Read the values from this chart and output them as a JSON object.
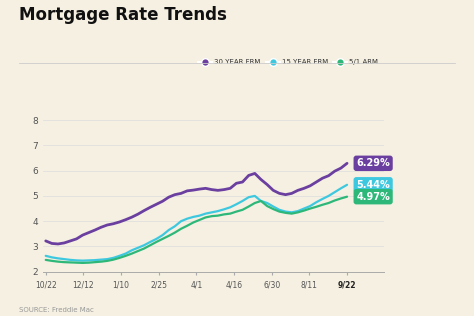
{
  "title": "Mortgage Rate Trends",
  "background_color": "#f5f0e1",
  "plot_bg_color": "#f5f0e1",
  "source_text": "SOURCE: Freddie Mac",
  "x_labels": [
    "10/22",
    "12/12",
    "1/10",
    "2/25",
    "4/1",
    "4/16",
    "6/30",
    "8/11",
    "9/22"
  ],
  "y_ticks": [
    2,
    3,
    4,
    5,
    6,
    7,
    8
  ],
  "ylim": [
    2.0,
    8.5
  ],
  "legend": [
    {
      "label": "30 YEAR FRM",
      "color": "#6b3fa0"
    },
    {
      "label": "15 YEAR FRM",
      "color": "#3ec8e0"
    },
    {
      "label": "5/1 ARM",
      "color": "#2db87a"
    }
  ],
  "end_labels": [
    {
      "value": "6.29%",
      "color": "#6b3fa0"
    },
    {
      "value": "5.44%",
      "color": "#3ec8e0"
    },
    {
      "value": "4.97%",
      "color": "#2db87a"
    }
  ],
  "series_30yr": [
    3.22,
    3.12,
    3.1,
    3.14,
    3.22,
    3.3,
    3.45,
    3.55,
    3.65,
    3.76,
    3.85,
    3.9,
    3.97,
    4.06,
    4.16,
    4.28,
    4.42,
    4.55,
    4.67,
    4.79,
    4.95,
    5.05,
    5.1,
    5.2,
    5.23,
    5.27,
    5.3,
    5.25,
    5.22,
    5.25,
    5.3,
    5.5,
    5.55,
    5.81,
    5.89,
    5.65,
    5.45,
    5.22,
    5.1,
    5.05,
    5.1,
    5.22,
    5.3,
    5.4,
    5.55,
    5.7,
    5.8,
    5.98,
    6.1,
    6.29
  ],
  "series_15yr": [
    2.63,
    2.57,
    2.53,
    2.5,
    2.47,
    2.45,
    2.44,
    2.45,
    2.46,
    2.48,
    2.5,
    2.55,
    2.63,
    2.72,
    2.85,
    2.95,
    3.05,
    3.18,
    3.3,
    3.45,
    3.65,
    3.8,
    4.0,
    4.1,
    4.17,
    4.22,
    4.3,
    4.35,
    4.4,
    4.47,
    4.55,
    4.67,
    4.8,
    4.95,
    5.0,
    4.8,
    4.72,
    4.58,
    4.45,
    4.38,
    4.35,
    4.4,
    4.5,
    4.6,
    4.75,
    4.88,
    5.0,
    5.15,
    5.3,
    5.44
  ],
  "series_arm": [
    2.47,
    2.43,
    2.4,
    2.38,
    2.37,
    2.36,
    2.35,
    2.36,
    2.38,
    2.4,
    2.43,
    2.48,
    2.55,
    2.63,
    2.72,
    2.82,
    2.92,
    3.05,
    3.18,
    3.3,
    3.42,
    3.55,
    3.7,
    3.82,
    3.95,
    4.05,
    4.15,
    4.2,
    4.22,
    4.27,
    4.3,
    4.38,
    4.45,
    4.58,
    4.72,
    4.8,
    4.6,
    4.48,
    4.38,
    4.33,
    4.3,
    4.35,
    4.42,
    4.5,
    4.57,
    4.65,
    4.72,
    4.82,
    4.9,
    4.97
  ]
}
